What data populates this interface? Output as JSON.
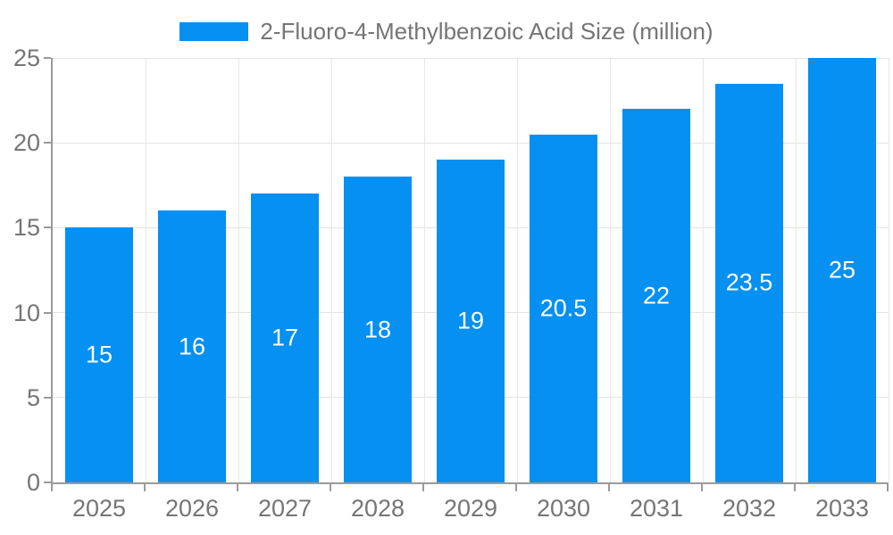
{
  "legend": {
    "label": "2-Fluoro-4-Methylbenzoic Acid Size (million)"
  },
  "chart_data": {
    "type": "bar",
    "title": "2-Fluoro-4-Methylbenzoic Acid Size (million)",
    "categories": [
      "2025",
      "2026",
      "2027",
      "2028",
      "2029",
      "2030",
      "2031",
      "2032",
      "2033"
    ],
    "values": [
      15,
      16,
      17,
      18,
      19,
      20.5,
      22,
      23.5,
      25
    ],
    "xlabel": "",
    "ylabel": "",
    "ylim": [
      0,
      25
    ],
    "yticks": [
      0,
      5,
      10,
      15,
      20,
      25
    ],
    "grid": true,
    "legend_position": "top-center",
    "bar_color": "#0590f2",
    "value_label_color": "#ffffff",
    "axis_text_color": "#757575",
    "axis_line_color": "#9a9a9a",
    "grid_color": "#e4e4e4"
  }
}
